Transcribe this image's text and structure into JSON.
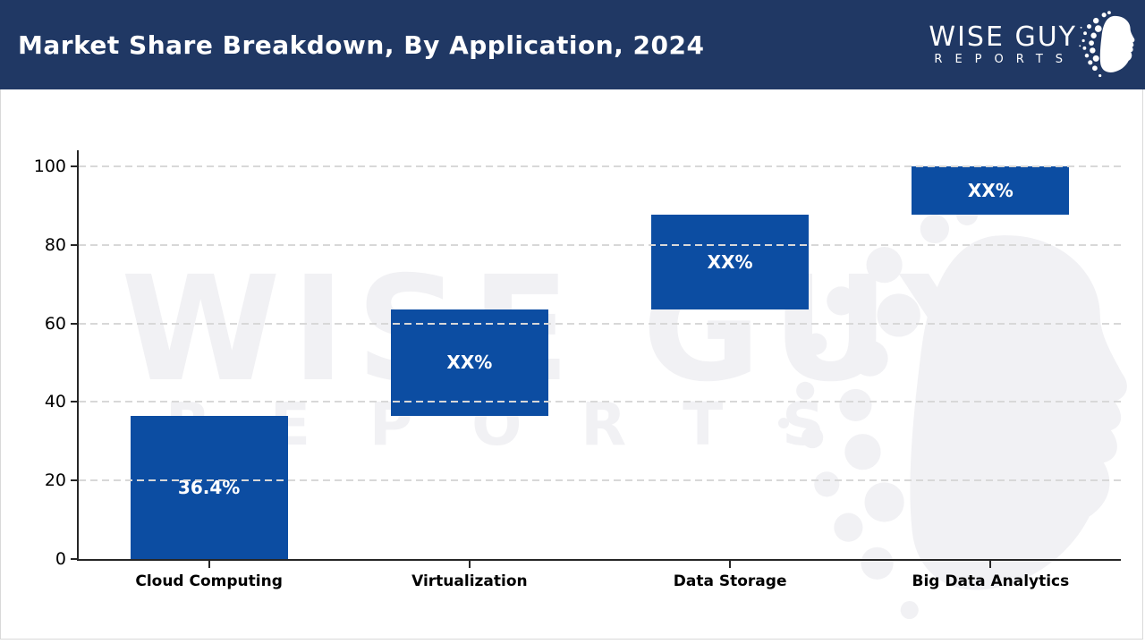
{
  "header": {
    "title": "Market Share Breakdown, By Application, 2024",
    "logo": {
      "line1": "WISE GUY",
      "line2": "REPORTS"
    }
  },
  "watermark": {
    "line1": "WISE GUY",
    "line2": "REPORTS"
  },
  "chart_data": {
    "type": "bar",
    "subtype": "floating-waterfall",
    "title": "Market Share Breakdown, By Application, 2024",
    "categories": [
      "Cloud Computing",
      "Virtualization",
      "Data Storage",
      "Big Data Analytics"
    ],
    "segments": [
      {
        "category": "Cloud Computing",
        "start": 0,
        "end": 36.4,
        "label": "36.4%"
      },
      {
        "category": "Virtualization",
        "start": 36.4,
        "end": 63.6,
        "label": "XX%"
      },
      {
        "category": "Data Storage",
        "start": 63.6,
        "end": 87.6,
        "label": "XX%"
      },
      {
        "category": "Big Data Analytics",
        "start": 87.6,
        "end": 100,
        "label": "XX%"
      }
    ],
    "xlabel": "",
    "ylabel": "",
    "ylim": [
      0,
      100
    ],
    "yticks": [
      0,
      20,
      40,
      60,
      80,
      100
    ],
    "grid": "dashed-horizontal",
    "legend": "none",
    "bar_color": "#0c4da2",
    "bar_label_color": "#ffffff"
  },
  "colors": {
    "header_bg": "#203864",
    "bar": "#0c4da2",
    "grid": "#d8d8d8",
    "axis": "#262626",
    "watermark": "#f1f1f4",
    "frame_border": "#d9d9d9",
    "text": "#000000",
    "title_text": "#ffffff"
  }
}
